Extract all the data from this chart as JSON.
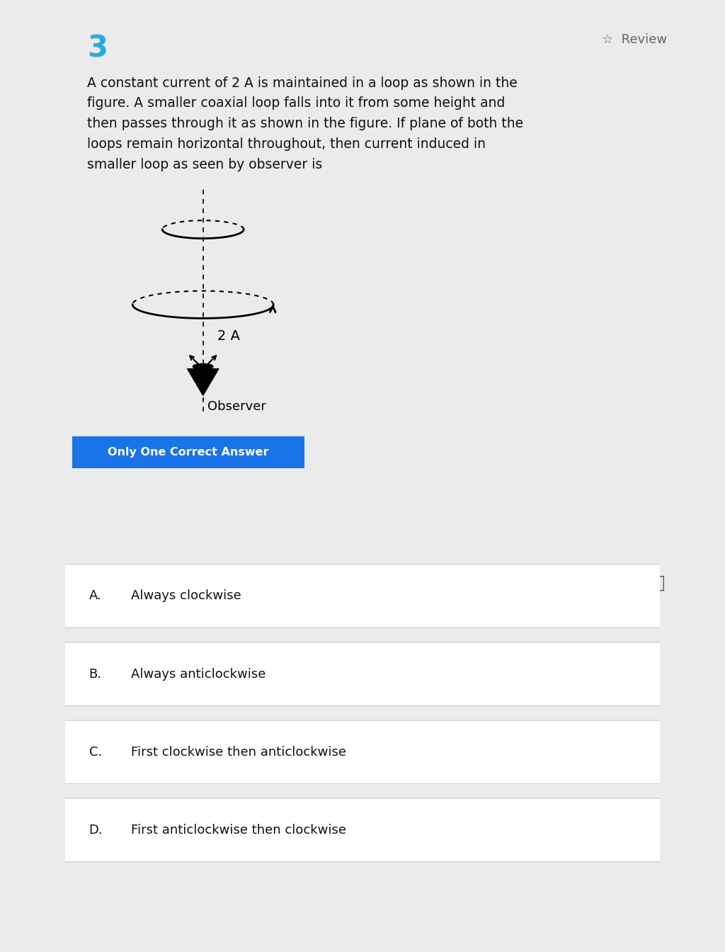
{
  "bg_color": "#ebebeb",
  "card_color": "#ffffff",
  "question_number": "3",
  "question_number_color": "#29abe2",
  "review_text": "☆  Review",
  "review_color": "#666666",
  "question_text": "A constant current of 2 A is maintained in a loop as shown in the\nfigure. A smaller coaxial loop falls into it from some height and\nthen passes through it as shown in the figure. If plane of both the\nloops remain horizontal throughout, then current induced in\nsmaller loop as seen by observer is",
  "question_color": "#111111",
  "label_2A": "2 A",
  "label_observer": "Observer",
  "button_text": "Only One Correct Answer",
  "button_color": "#1a73e8",
  "button_text_color": "#ffffff",
  "options": [
    "Always clockwise",
    "Always anticlockwise",
    "First clockwise then anticlockwise",
    "First anticlockwise then clockwise"
  ],
  "option_labels": [
    "A.",
    "B.",
    "C.",
    "D."
  ],
  "option_color": "#111111",
  "option_bg": "#ffffff",
  "option_border": "#cccccc",
  "separator_color": "#cccccc"
}
